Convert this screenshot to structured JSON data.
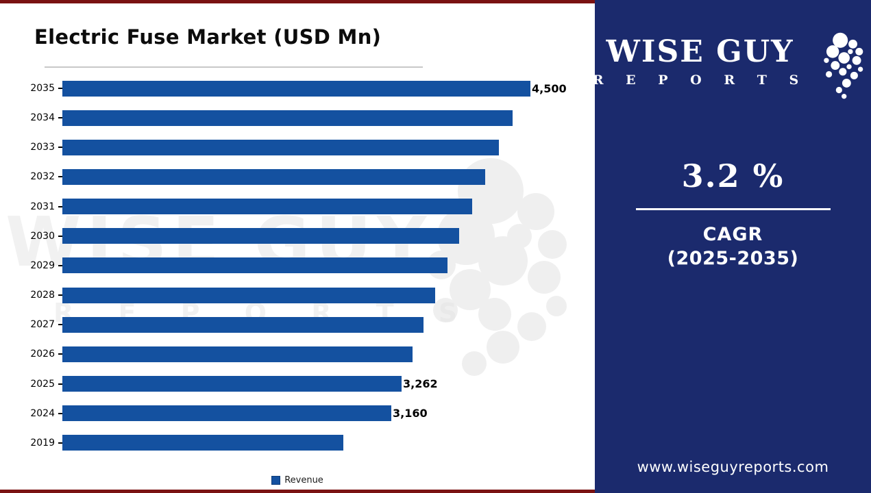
{
  "chart_data": {
    "type": "bar",
    "orientation": "horizontal",
    "title": "Electric Fuse Market (USD Mn)",
    "categories": [
      "2035",
      "2034",
      "2033",
      "2032",
      "2031",
      "2030",
      "2029",
      "2028",
      "2027",
      "2026",
      "2025",
      "2024",
      "2019"
    ],
    "values": [
      4500,
      4330,
      4196,
      4066,
      3940,
      3818,
      3700,
      3585,
      3474,
      3366,
      3262,
      3160,
      2700
    ],
    "value_labels": [
      "4,500",
      "",
      "",
      "",
      "",
      "",
      "",
      "",
      "",
      "",
      "3,262",
      "3,160",
      ""
    ],
    "xlim": [
      0,
      4500
    ],
    "bar_color": "#1451a0",
    "grid": false,
    "legend_position": "bottom",
    "legend": [
      {
        "label": "Revenue",
        "color": "#1451a0"
      }
    ]
  },
  "legend": {
    "revenue_label": "Revenue"
  },
  "watermark": {
    "line1": "WISE GUY",
    "line2": "R E P O R T S"
  },
  "panel": {
    "bg_color": "#1b2a6d",
    "brand_line1": "WISE GUY",
    "brand_line2": "R E P O R T S",
    "cagr_value": "3.2 %",
    "cagr_label": "CAGR",
    "cagr_period": "(2025-2035)",
    "website": "www.wiseguyreports.com"
  },
  "accents": {
    "border_red": "#7a1212",
    "bar_blue": "#1451a0"
  }
}
